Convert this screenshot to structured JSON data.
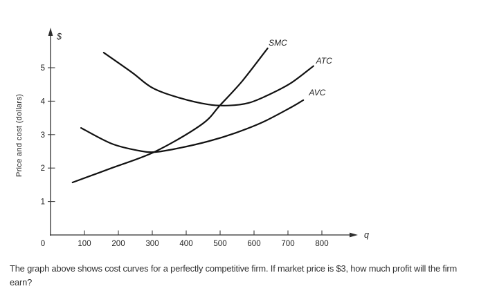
{
  "chart_data": {
    "type": "line",
    "title": "",
    "xlabel": "q",
    "ylabel": "Price and cost (dollars)",
    "y_unit_label": "$",
    "origin_label": "0",
    "x_ticks": [
      100,
      200,
      300,
      400,
      500,
      600,
      700,
      800
    ],
    "y_ticks": [
      1,
      2,
      3,
      4,
      5
    ],
    "xlim": [
      0,
      900
    ],
    "ylim": [
      0,
      6.2
    ],
    "grid": false,
    "legend": "inline labels at right end of each curve",
    "series": [
      {
        "name": "SMC",
        "points": [
          [
            65,
            1.57
          ],
          [
            180,
            2.0
          ],
          [
            310,
            2.5
          ],
          [
            445,
            3.3
          ],
          [
            500,
            3.88
          ],
          [
            565,
            4.6
          ],
          [
            640,
            5.58
          ]
        ],
        "label_pos": [
          643,
          5.66
        ]
      },
      {
        "name": "ATC",
        "points": [
          [
            157,
            5.45
          ],
          [
            240,
            4.86
          ],
          [
            300,
            4.4
          ],
          [
            380,
            4.1
          ],
          [
            465,
            3.9
          ],
          [
            525,
            3.87
          ],
          [
            585,
            3.95
          ],
          [
            645,
            4.2
          ],
          [
            710,
            4.55
          ],
          [
            775,
            5.05
          ]
        ],
        "label_pos": [
          783,
          5.12
        ]
      },
      {
        "name": "AVC",
        "points": [
          [
            90,
            3.2
          ],
          [
            180,
            2.73
          ],
          [
            260,
            2.52
          ],
          [
            310,
            2.48
          ],
          [
            380,
            2.6
          ],
          [
            465,
            2.8
          ],
          [
            545,
            3.05
          ],
          [
            625,
            3.37
          ],
          [
            710,
            3.82
          ],
          [
            745,
            4.03
          ]
        ],
        "label_pos": [
          762,
          4.17
        ]
      }
    ],
    "notes": "SMC crosses AVC at its minimum (~q=310, $2.50) and ATC at its minimum (~q=500, $3.88)"
  },
  "question": {
    "text": "The graph above shows cost curves for a perfectly competitive firm. If market price is $3, how much profit will the firm earn?"
  },
  "colors": {
    "curve": "#111111",
    "axis": "#2f2f2f",
    "tick": "#3a3a3a",
    "label_text": "#222222",
    "question_text": "#333333",
    "background": "#ffffff"
  }
}
